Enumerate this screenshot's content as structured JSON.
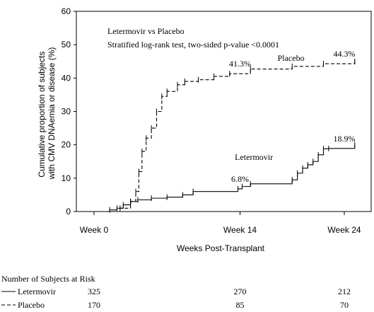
{
  "chart_data": {
    "type": "line",
    "title": "",
    "xlabel": "Weeks Post-Transplant",
    "ylabel": "Cumulative proportion of subjects with CMV DNAemia or disease (%)",
    "ylabel_lines": [
      "Cumulative proportion of subjects",
      "with CMV DNAemia or disease (%)"
    ],
    "xlim": [
      0,
      25
    ],
    "ylim": [
      0,
      60
    ],
    "yticks": [
      0,
      10,
      20,
      30,
      40,
      50,
      60
    ],
    "xticks": [
      {
        "value": 0,
        "label": "Week 0"
      },
      {
        "value": 14,
        "label": "Week 14"
      },
      {
        "value": 24,
        "label": "Week 24"
      }
    ],
    "annotations": {
      "comparison": "Letermovir vs Placebo",
      "test": "Stratified log-rank test, two-sided p-value <0.0001"
    },
    "series": [
      {
        "name": "Letermovir",
        "line_style": "solid",
        "label_x": 13.5,
        "label_y": 15.5,
        "x": [
          0,
          1.5,
          2.2,
          2.8,
          3.5,
          4.2,
          5.5,
          7.0,
          8.5,
          9.5,
          13.8,
          14.2,
          15.0,
          19.0,
          19.5,
          20.0,
          20.5,
          21.0,
          21.5,
          22.0,
          22.5,
          25.0
        ],
        "y": [
          0,
          0.5,
          1.0,
          2.0,
          3.0,
          3.5,
          4.0,
          4.3,
          5.0,
          6.0,
          6.8,
          7.5,
          8.3,
          9.5,
          11.5,
          13.0,
          14.0,
          15.0,
          17.0,
          18.8,
          18.9,
          20.0
        ],
        "callouts": [
          {
            "x": 14,
            "y": 6.8,
            "label": "6.8%"
          },
          {
            "x": 24,
            "y": 18.9,
            "label": "18.9%"
          }
        ]
      },
      {
        "name": "Placebo",
        "line_style": "dashed",
        "label_x": 17.6,
        "label_y": 45.2,
        "x": [
          0,
          2.5,
          3.5,
          4.0,
          4.3,
          4.6,
          5.0,
          5.5,
          6.0,
          6.5,
          7.0,
          8.0,
          8.7,
          10.0,
          11.5,
          13.0,
          15.0,
          19.0,
          22.0,
          25.0
        ],
        "y": [
          0,
          1.0,
          3.0,
          6.0,
          12.0,
          18.0,
          22.0,
          25.0,
          30.0,
          34.5,
          36.0,
          38.0,
          39.0,
          39.5,
          40.5,
          41.3,
          42.7,
          43.5,
          44.3,
          45.0
        ],
        "callouts": [
          {
            "x": 14,
            "y": 41.3,
            "label": "41.3%"
          },
          {
            "x": 24,
            "y": 44.3,
            "label": "44.3%"
          }
        ]
      }
    ]
  },
  "risk_table": {
    "title": "Number of Subjects at Risk",
    "rows": [
      {
        "name": "Letermovir",
        "line_style": "solid",
        "values": [
          "325",
          "270",
          "212"
        ]
      },
      {
        "name": "Placebo",
        "line_style": "dashed",
        "values": [
          "170",
          "85",
          "70"
        ]
      }
    ]
  }
}
